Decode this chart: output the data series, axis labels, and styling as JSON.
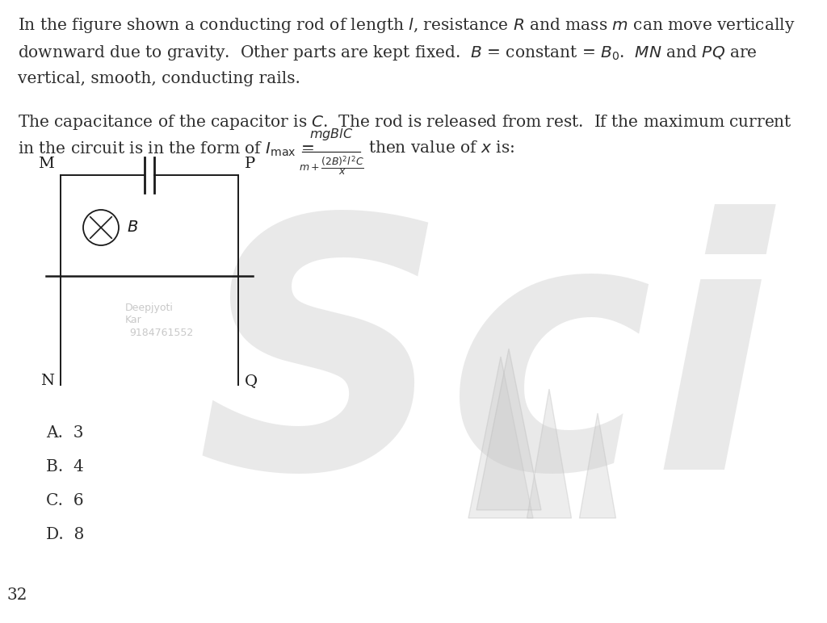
{
  "background_color": "#ffffff",
  "text_color": "#2d2d2d",
  "line1": "In the figure shown a conducting rod of length $l$, resistance $R$ and mass $m$ can move vertically",
  "line2": "downward due to gravity.  Other parts are kept fixed.  $B$ = constant = $B_0$.  $MN$ and $PQ$ are",
  "line3": "vertical, smooth, conducting rails.",
  "line4": "The capacitance of the capacitor is $C$.  The rod is released from rest.  If the maximum current",
  "line5_prefix": "in the circuit is in the form of $I_{\\mathrm{max}}$ = ",
  "line5_suffix": " then value of $x$ is:",
  "formula_num": "mgBlC",
  "formula_den": "$m+\\dfrac{(2B)^2l^2C}{x}$",
  "options": [
    "A.  3",
    "B.  4",
    "C.  6",
    "D.  8"
  ],
  "page_number": "32",
  "watermark_text": "Deepjyoti\nKar\n9184761552",
  "sci_color": "#c8c8c8",
  "diagram_color": "#1a1a1a"
}
